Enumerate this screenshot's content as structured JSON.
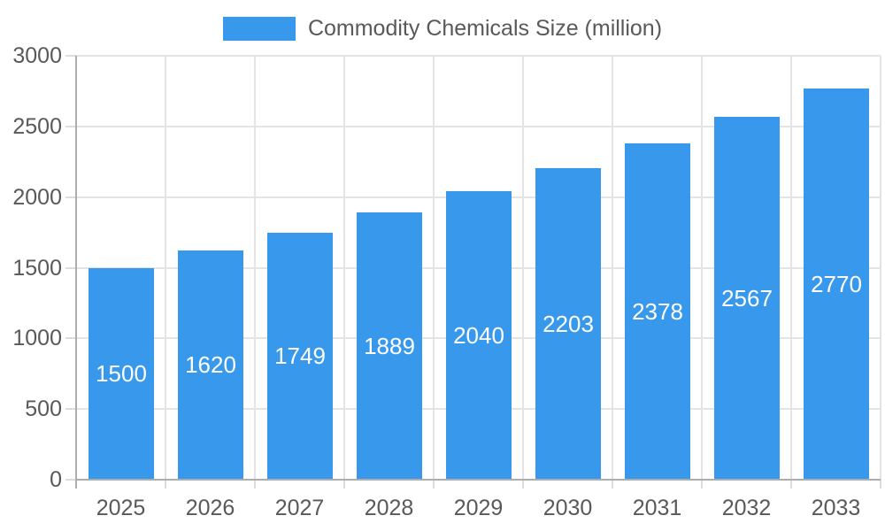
{
  "legend": {
    "label": "Commodity Chemicals Size (million)"
  },
  "colors": {
    "bar": "#3899EC",
    "grid": "#E4E4E4",
    "axis": "#ADADAD",
    "tick": "#DCDCDC",
    "text": "#58595B",
    "bar_label": "#FFFFFF"
  },
  "chart_data": {
    "type": "bar",
    "series_name": "Commodity Chemicals Size (million)",
    "categories": [
      "2025",
      "2026",
      "2027",
      "2028",
      "2029",
      "2030",
      "2031",
      "2032",
      "2033"
    ],
    "values": [
      1500,
      1620,
      1749,
      1889,
      2040,
      2203,
      2378,
      2567,
      2770
    ],
    "value_labels": "inside-center",
    "title": "",
    "xlabel": "",
    "ylabel": "",
    "ylim": [
      0,
      3000
    ],
    "yticks": [
      0,
      500,
      1000,
      1500,
      2000,
      2500,
      3000
    ],
    "grid": true,
    "legend_position": "top-center",
    "bar_width_fraction": 0.73
  }
}
